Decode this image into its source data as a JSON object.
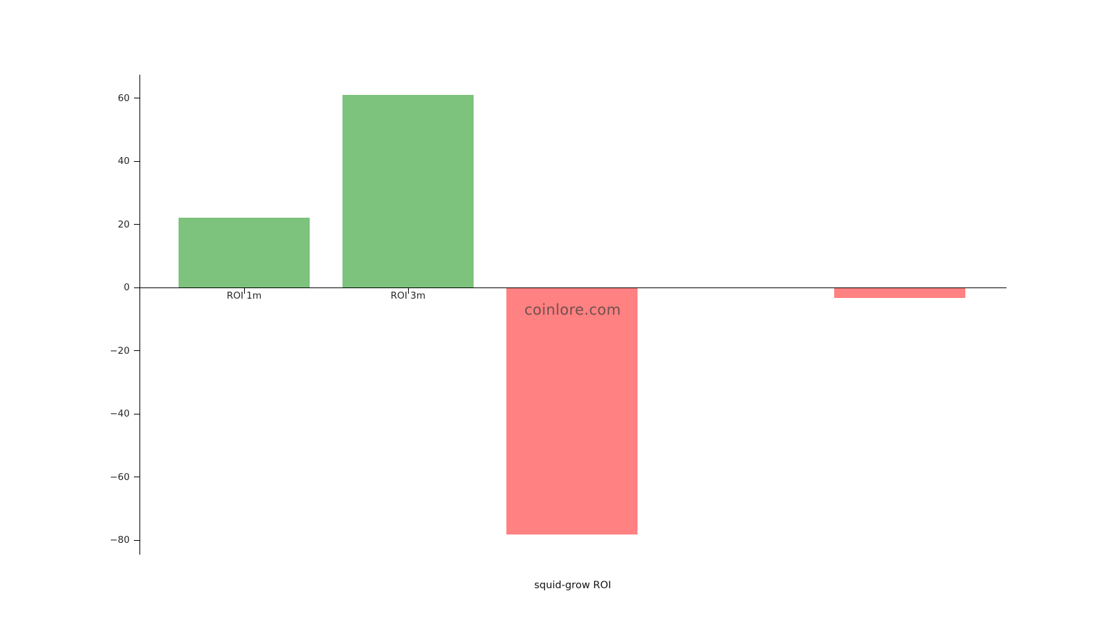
{
  "page": {
    "background": "#ffffff"
  },
  "chart_data": {
    "type": "bar",
    "title": "",
    "xlabel": "squid-grow ROI",
    "ylabel": "",
    "categories": [
      "ROI 1m",
      "ROI 3m",
      "",
      "",
      ""
    ],
    "values": [
      22,
      61,
      -78,
      0,
      -3
    ],
    "bar_colors": [
      "#7dc27d",
      "#7dc27d",
      "#ff8181",
      null,
      "#ff8181"
    ],
    "positive_color": "#7dc27d",
    "negative_color": "#ff8181",
    "yticks": [
      60,
      40,
      20,
      0,
      -20,
      -40,
      -60,
      -80
    ],
    "ytick_labels": [
      "60",
      "40",
      "20",
      "0",
      "−20",
      "−40",
      "−60",
      "−80"
    ],
    "ylim": [
      -84,
      67
    ],
    "grid": false,
    "legend": null,
    "watermark": "coinlore.com",
    "axis_color": "#000000",
    "tick_label_color": "#262626"
  }
}
